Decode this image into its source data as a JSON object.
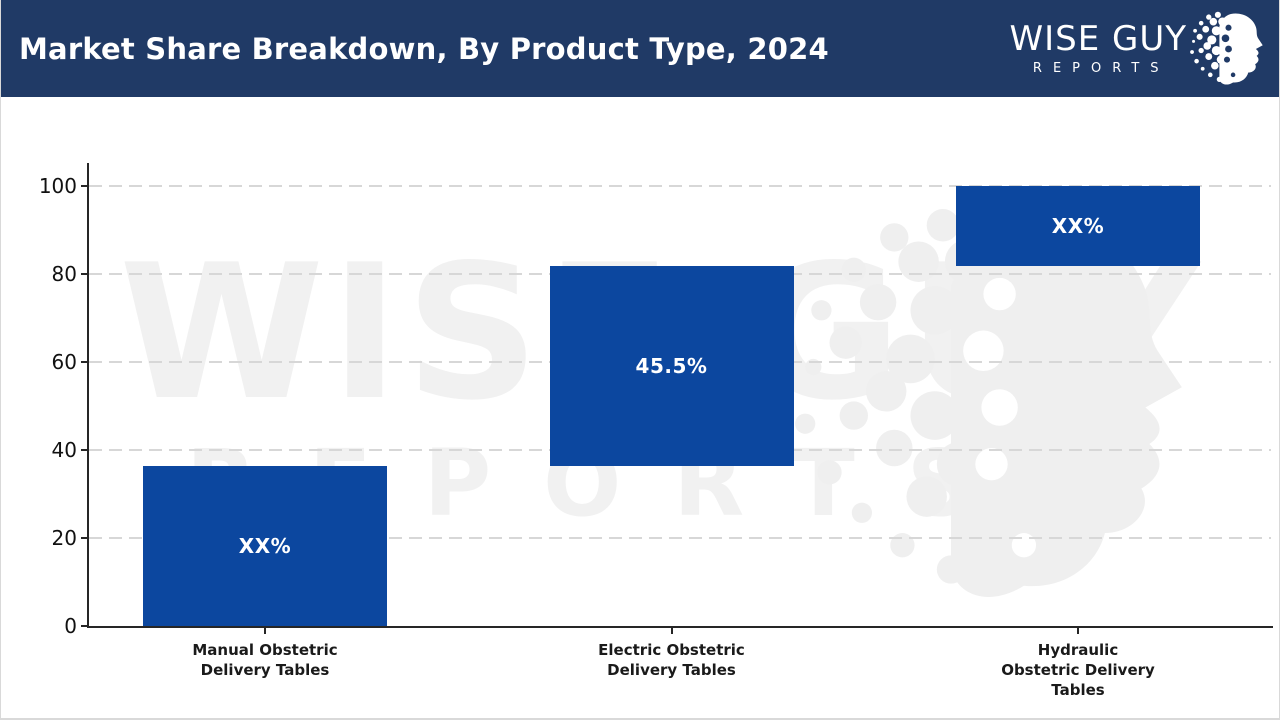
{
  "header": {
    "title": "Market Share Breakdown, By Product Type, 2024",
    "logo": {
      "name": "WISE GUY",
      "tagline": "REPORTS"
    }
  },
  "watermark": {
    "line1": "WISE GUY",
    "line2": "REPORTS"
  },
  "colors": {
    "header_bg": "#203a66",
    "bar": "#0c479f",
    "gridline": "#d7d7d7",
    "axis": "#262626",
    "watermark": "#f1f1f1",
    "page_border": "#d9d9d9",
    "title_text": "#ffffff",
    "tick_text": "#111111",
    "bar_label_text": "#ffffff"
  },
  "chart_data": {
    "type": "bar",
    "variant": "stacked-waterfall",
    "title": "Market Share Breakdown, By Product Type, 2024",
    "xlabel": "",
    "ylabel": "",
    "categories": [
      "Manual Obstetric Delivery Tables",
      "Electric Obstetric Delivery Tables",
      "Hydraulic Obstetric Delivery Tables"
    ],
    "category_label_lines": [
      [
        "Manual Obstetric",
        "Delivery Tables"
      ],
      [
        "Electric Obstetric",
        "Delivery Tables"
      ],
      [
        "Hydraulic",
        "Obstetric Delivery",
        "Tables"
      ]
    ],
    "bars": [
      {
        "category": "Manual Obstetric Delivery Tables",
        "segment_start": 0,
        "segment_end": 36.3,
        "segment_height": 36.3,
        "value_label": "XX%"
      },
      {
        "category": "Electric Obstetric Delivery Tables",
        "segment_start": 36.3,
        "segment_end": 81.8,
        "segment_height": 45.5,
        "value_label": "45.5%"
      },
      {
        "category": "Hydraulic Obstetric Delivery Tables",
        "segment_start": 81.8,
        "segment_end": 100,
        "segment_height": 18.2,
        "value_label": "XX%"
      }
    ],
    "ylim": [
      0,
      105
    ],
    "yticks": [
      0,
      20,
      40,
      60,
      80,
      100
    ],
    "grid": "horizontal-dashed",
    "legend": "none",
    "bar_color": "#0c479f"
  }
}
